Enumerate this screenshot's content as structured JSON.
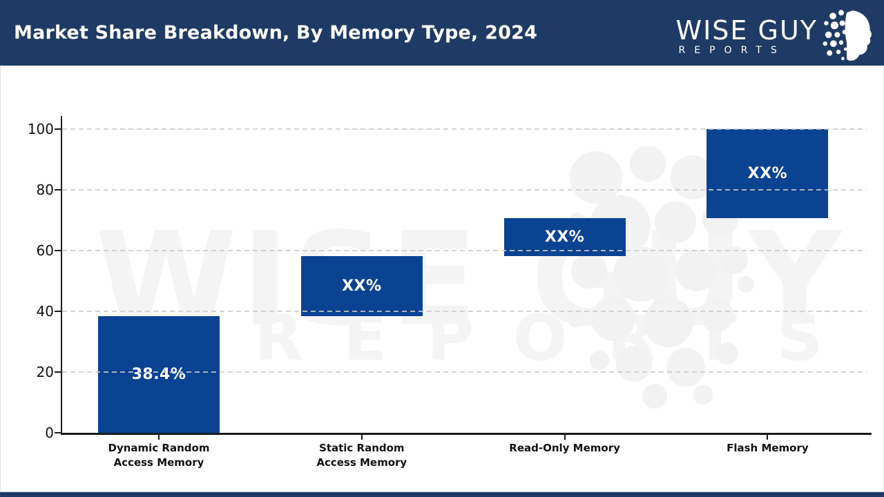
{
  "header": {
    "title": "Market Share Breakdown, By Memory Type, 2024",
    "logo": {
      "name": "WISE GUY",
      "subname": "REPORTS"
    }
  },
  "watermark": {
    "text": "WISE GUY",
    "subtext": "REPORTS"
  },
  "colors": {
    "header_bg": "#1f3a64",
    "footer_bg": "#1f3a64",
    "bar": "#0a4391",
    "bar_label": "#ffffff",
    "axis": "#1a1a1a",
    "grid": "#cbcbcb",
    "watermark": "#f4f4f4",
    "tick_text": "#111111"
  },
  "chart_data": {
    "type": "bar",
    "subtype": "waterfall",
    "title": "Market Share Breakdown, By Memory Type, 2024",
    "categories": [
      {
        "label": "Dynamic Random Access Memory",
        "lines": [
          "Dynamic Random",
          "Access Memory"
        ]
      },
      {
        "label": "Static Random Access Memory",
        "lines": [
          "Static Random",
          "Access Memory"
        ]
      },
      {
        "label": "Read-Only Memory",
        "lines": [
          "Read-Only Memory"
        ]
      },
      {
        "label": "Flash Memory",
        "lines": [
          "Flash Memory"
        ]
      }
    ],
    "segments": [
      {
        "label": "38.4%",
        "start": 0,
        "end": 38.4
      },
      {
        "label": "XX%",
        "start": 38.4,
        "end": 58.2
      },
      {
        "label": "XX%",
        "start": 58.2,
        "end": 70.7
      },
      {
        "label": "XX%",
        "start": 70.7,
        "end": 100
      }
    ],
    "values_displayed": [
      "38.4%",
      "XX%",
      "XX%",
      "XX%"
    ],
    "ylim": [
      0,
      100
    ],
    "yticks": [
      0,
      20,
      40,
      60,
      80,
      100
    ],
    "yticklabels": [
      "0",
      "20",
      "40",
      "60",
      "80",
      "100"
    ],
    "grid": "dashed-horizontal",
    "legend": "none"
  }
}
